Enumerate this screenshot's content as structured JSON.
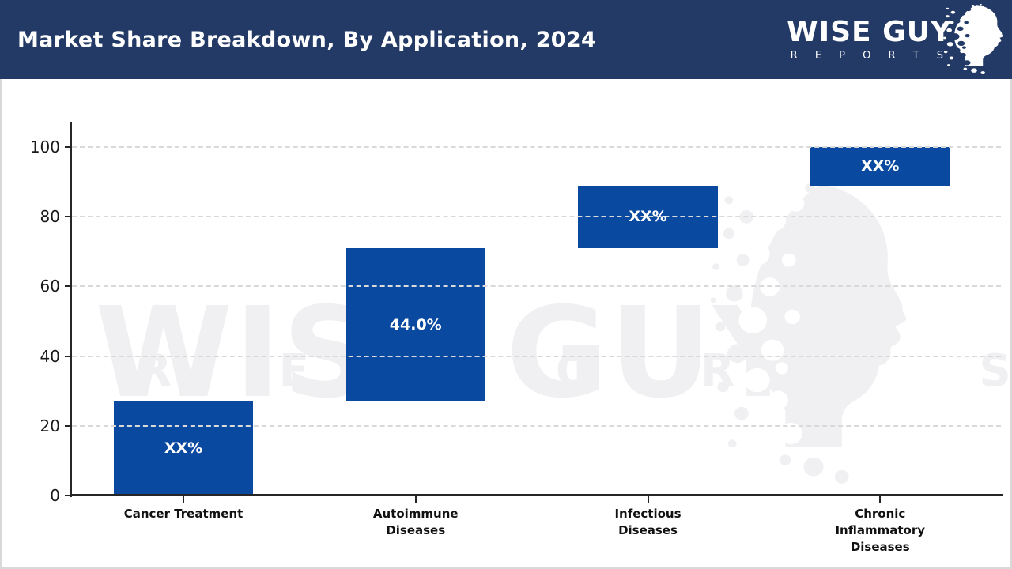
{
  "header": {
    "title": "Market Share Breakdown, By Application, 2024",
    "background_color": "#233a66",
    "logo": {
      "line1": "WISE GUY",
      "line2": "R E P O R T S"
    }
  },
  "watermark": {
    "line1": "WISE GUY",
    "line2": "R E P O R T S"
  },
  "chart_data": {
    "type": "bar",
    "subtype": "floating-segment-waterfall",
    "title": "Market Share Breakdown, By Application, 2024",
    "categories": [
      "Cancer Treatment",
      "Autoimmune\nDiseases",
      "Infectious\nDiseases",
      "Chronic\nInflammatory\nDiseases"
    ],
    "segments": [
      {
        "category": "Cancer Treatment",
        "start": 0,
        "end": 27,
        "value": 27,
        "value_label": "XX%"
      },
      {
        "category": "Autoimmune Diseases",
        "start": 27,
        "end": 71,
        "value": 44,
        "value_label": "44.0%"
      },
      {
        "category": "Infectious Diseases",
        "start": 71,
        "end": 89,
        "value": 18,
        "value_label": "XX%"
      },
      {
        "category": "Chronic Inflammatory Diseases",
        "start": 89,
        "end": 100,
        "value": 11,
        "value_label": "XX%"
      }
    ],
    "yticks": [
      0,
      20,
      40,
      60,
      80,
      100
    ],
    "ylim": [
      0,
      107
    ],
    "xlabel": "",
    "ylabel": "",
    "grid": {
      "axis": "y",
      "style": "dashed",
      "color": "#d9d9d9",
      "on_top_of_bars": true
    },
    "legend": null,
    "bar_color": "#0a49a0",
    "bar_value_label_color": "#ffffff",
    "axis_color": "#262626"
  }
}
